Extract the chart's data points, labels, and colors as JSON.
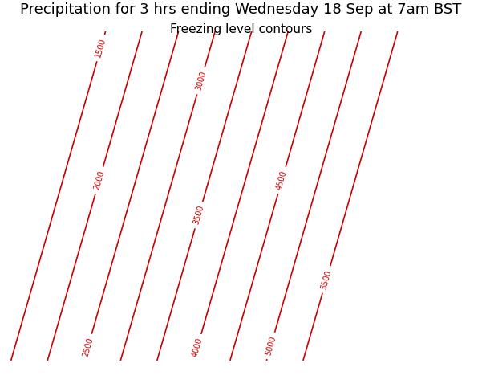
{
  "title": "Precipitation for 3 hrs ending Wednesday 18 Sep at 7am BST",
  "subtitle": "Freezing level contours",
  "title_fontsize": 13,
  "subtitle_fontsize": 11,
  "bg_color": "#f0f0f8",
  "ocean_color": "#d8d8f0",
  "land_color": "#a0a0a0",
  "contour_color": "#cc0000",
  "contour_levels": [
    1500,
    2000,
    2500,
    3000,
    3500,
    4000,
    4500,
    5000,
    5500
  ],
  "lon_min": -25,
  "lon_max": 30,
  "lat_min": 35,
  "lat_max": 72
}
